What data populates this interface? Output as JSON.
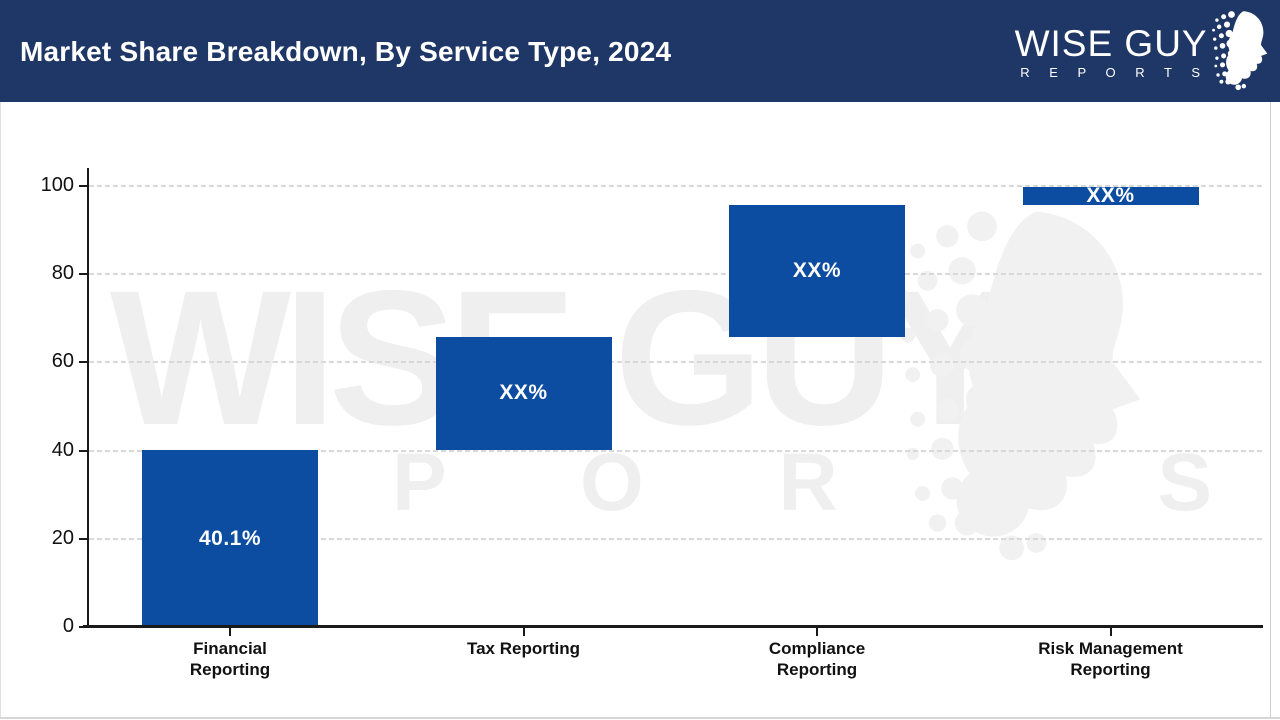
{
  "header": {
    "title": "Market Share Breakdown, By Service Type, 2024",
    "logo": {
      "line1": "WISE GUY",
      "line2": "R E P O R T S",
      "icon": "wiseguy-face-icon"
    }
  },
  "watermark": {
    "line1": "WISE GUY",
    "line2": "P O R T S"
  },
  "colors": {
    "header_bg": "#1f3766",
    "bar": "#0d4da1",
    "bar_label": "#ffffff",
    "axis": "#1a1a1a",
    "grid": "#d9d9d9",
    "watermark": "#efefef",
    "title_text": "#ffffff"
  },
  "chart_data": {
    "type": "bar",
    "subtype": "waterfall",
    "title": "Market Share Breakdown, By Service Type, 2024",
    "categories": [
      "Financial Reporting",
      "Tax Reporting",
      "Compliance Reporting",
      "Risk Management Reporting"
    ],
    "category_lines": [
      [
        "Financial",
        "Reporting"
      ],
      [
        "Tax Reporting"
      ],
      [
        "Compliance",
        "Reporting"
      ],
      [
        "Risk Management",
        "Reporting"
      ]
    ],
    "segments": [
      {
        "category": "Financial Reporting",
        "start": 0,
        "end": 40.1,
        "value_label": "40.1%"
      },
      {
        "category": "Tax Reporting",
        "start": 40.1,
        "end": 65.8,
        "value_label": "XX%"
      },
      {
        "category": "Compliance Reporting",
        "start": 65.8,
        "end": 95.6,
        "value_label": "XX%"
      },
      {
        "category": "Risk Management Reporting",
        "start": 95.6,
        "end": 99.8,
        "value_label": "XX%"
      }
    ],
    "yticks": [
      0,
      20,
      40,
      60,
      80,
      100
    ],
    "ylim": [
      0,
      105
    ],
    "xlabel": "",
    "ylabel": "",
    "grid": "horizontal-dashed",
    "legend": "none",
    "bar_color": "#0d4da1",
    "value_label_color": "#ffffff"
  }
}
